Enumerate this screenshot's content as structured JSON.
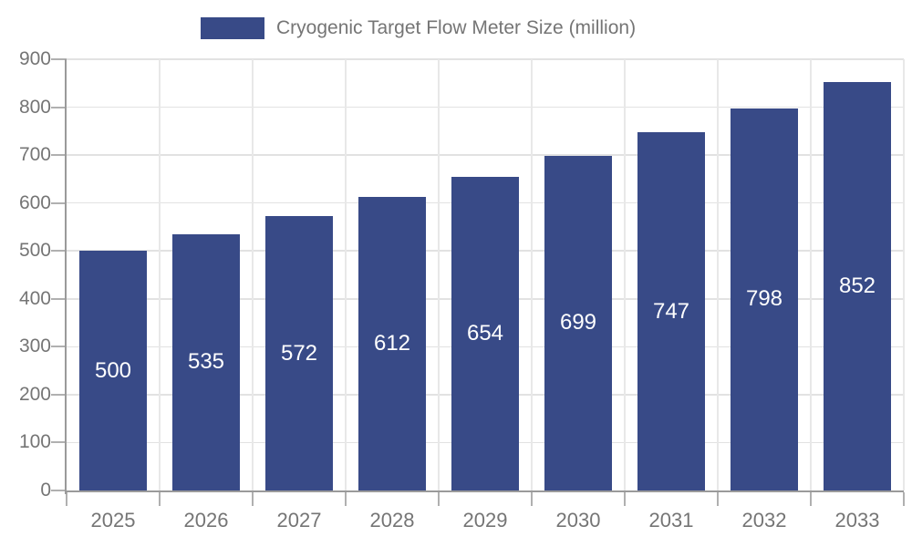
{
  "chart_data": {
    "type": "bar",
    "categories": [
      "2025",
      "2026",
      "2027",
      "2028",
      "2029",
      "2030",
      "2031",
      "2032",
      "2033"
    ],
    "series": [
      {
        "name": "Cryogenic Target Flow Meter Size (million)",
        "values": [
          500,
          535,
          572,
          612,
          654,
          699,
          747,
          798,
          852
        ]
      }
    ],
    "value_labels_visible": true,
    "title": "",
    "xlabel": "",
    "ylabel": "",
    "ylim": [
      0,
      900
    ],
    "yticks": [
      0,
      100,
      200,
      300,
      400,
      500,
      600,
      700,
      800,
      900
    ],
    "grid": true,
    "legend_position": "top-center",
    "colors": {
      "bar": "#384A87",
      "grid_horizontal": "#e2e2e2",
      "grid_vertical": "#e8e8e8",
      "axis": "#9a9a9a",
      "tick": "#b0b0b0",
      "tick_label": "#757575",
      "value_label": "#ffffff",
      "background": "#ffffff"
    }
  }
}
